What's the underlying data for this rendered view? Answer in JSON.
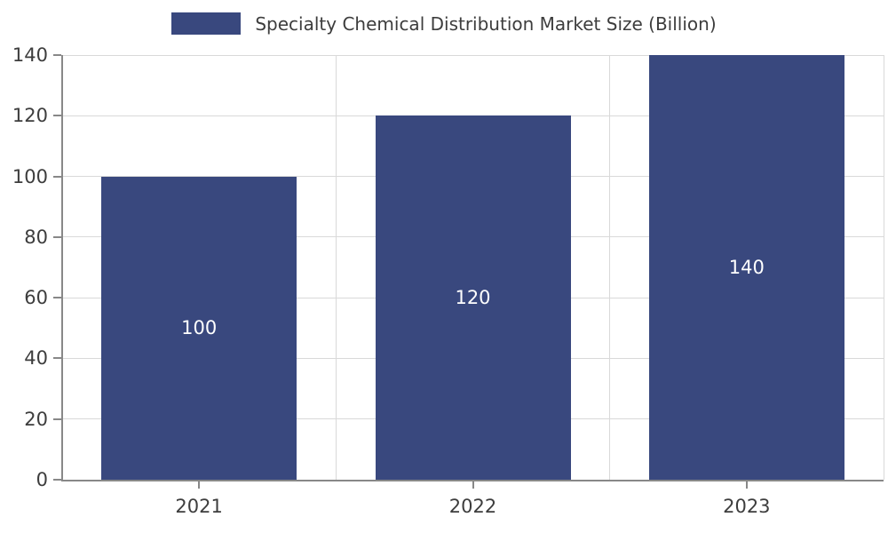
{
  "chart_data": {
    "type": "bar",
    "title": "Specialty Chemical Distribution Market Size (Billion)",
    "categories": [
      "2021",
      "2022",
      "2023"
    ],
    "values": [
      100,
      120,
      140
    ],
    "series": [
      {
        "name": "Specialty Chemical Distribution Market Size (Billion)",
        "values": [
          100,
          120,
          140
        ]
      }
    ],
    "value_labels": [
      "100",
      "120",
      "140"
    ],
    "xlabel": "",
    "ylabel": "",
    "ylim": [
      0,
      140
    ],
    "yticks": [
      0,
      20,
      40,
      60,
      80,
      100,
      120,
      140
    ],
    "grid": true,
    "legend_position": "top",
    "bar_color": "#39487E",
    "value_label_color": "#ffffff",
    "grid_color": "#d9d9d9",
    "axis_color": "#888888",
    "text_color": "#3d3d3d",
    "background_color": "#ffffff"
  }
}
